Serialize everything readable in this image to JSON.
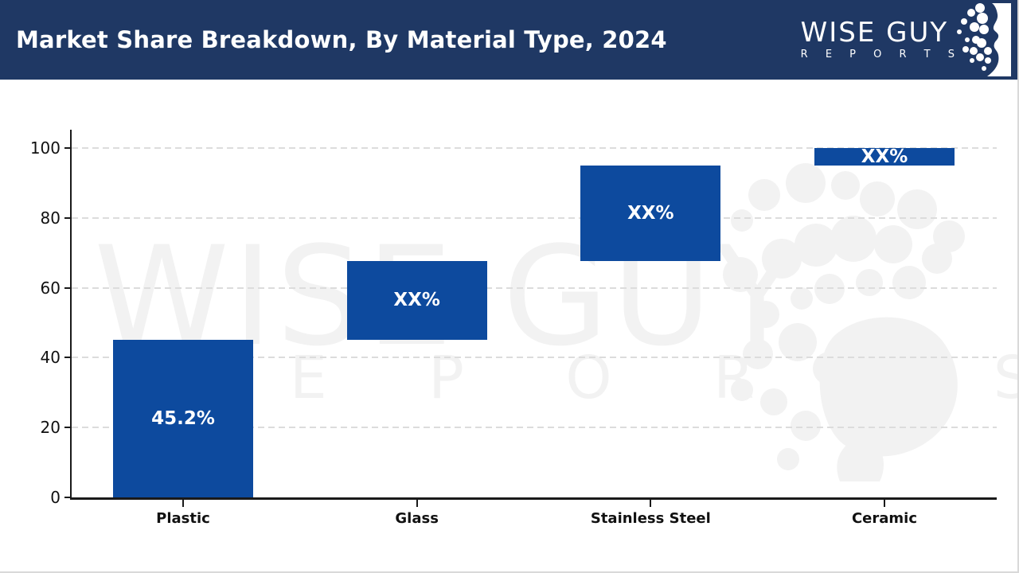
{
  "header": {
    "title": "Market Share Breakdown, By Material Type, 2024",
    "logo": {
      "wordmark": "WISE GUY",
      "subtext": "R E P O R T S"
    }
  },
  "watermark": {
    "line1": "WISE GUY",
    "line2": "R E P O R T S"
  },
  "colors": {
    "header_bg": "#1f3864",
    "bar": "#0d4a9e",
    "bar_label": "#ffffff",
    "grid": "#dcdcdc",
    "axis": "#1a1a1a",
    "watermark": "#f2f2f2"
  },
  "chart_data": {
    "type": "bar",
    "subtype": "waterfall",
    "title": "Market Share Breakdown, By Material Type, 2024",
    "categories": [
      "Plastic",
      "Glass",
      "Stainless Steel",
      "Ceramic"
    ],
    "series": [
      {
        "name": "Market share (%)",
        "segments": [
          {
            "category": "Plastic",
            "start": 0,
            "end": 45.2,
            "label": "45.2%"
          },
          {
            "category": "Glass",
            "start": 45.2,
            "end": 67.7,
            "label": "XX%"
          },
          {
            "category": "Stainless Steel",
            "start": 67.7,
            "end": 95.0,
            "label": "XX%"
          },
          {
            "category": "Ceramic",
            "start": 95.0,
            "end": 100.0,
            "label": "XX%"
          }
        ]
      }
    ],
    "xlabel": "",
    "ylabel": "",
    "ylim": [
      0,
      105
    ],
    "yticks": [
      0,
      20,
      40,
      60,
      80,
      100
    ],
    "grid": "horizontal-dashed",
    "legend": "none"
  }
}
